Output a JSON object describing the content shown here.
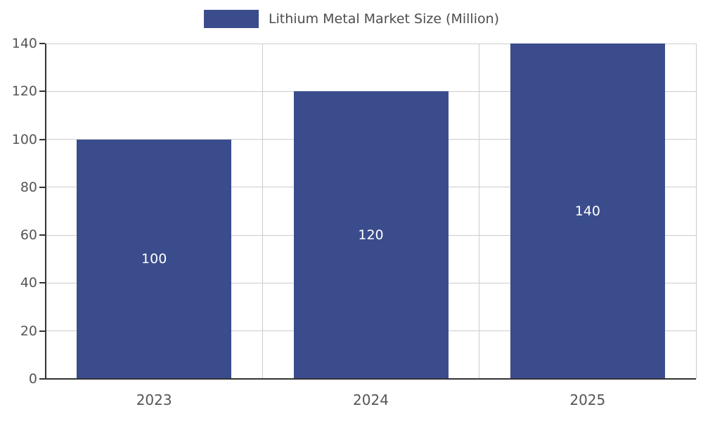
{
  "legend": {
    "label": "Lithium Metal Market Size (Million)"
  },
  "colors": {
    "bar": "#3A4C8C",
    "grid": "#cccccc",
    "axis": "#333333",
    "tick_label": "#555555",
    "value_label": "#ffffff"
  },
  "chart_data": {
    "type": "bar",
    "categories": [
      "2023",
      "2024",
      "2025"
    ],
    "values": [
      100,
      120,
      140
    ],
    "data_labels": [
      "100",
      "120",
      "140"
    ],
    "title": "Lithium Metal Market Size (Million)",
    "xlabel": "",
    "ylabel": "",
    "ylim": [
      0,
      140
    ],
    "yticks": [
      0,
      20,
      40,
      60,
      80,
      100,
      120,
      140
    ],
    "grid": true,
    "legend_position": "top-center"
  }
}
